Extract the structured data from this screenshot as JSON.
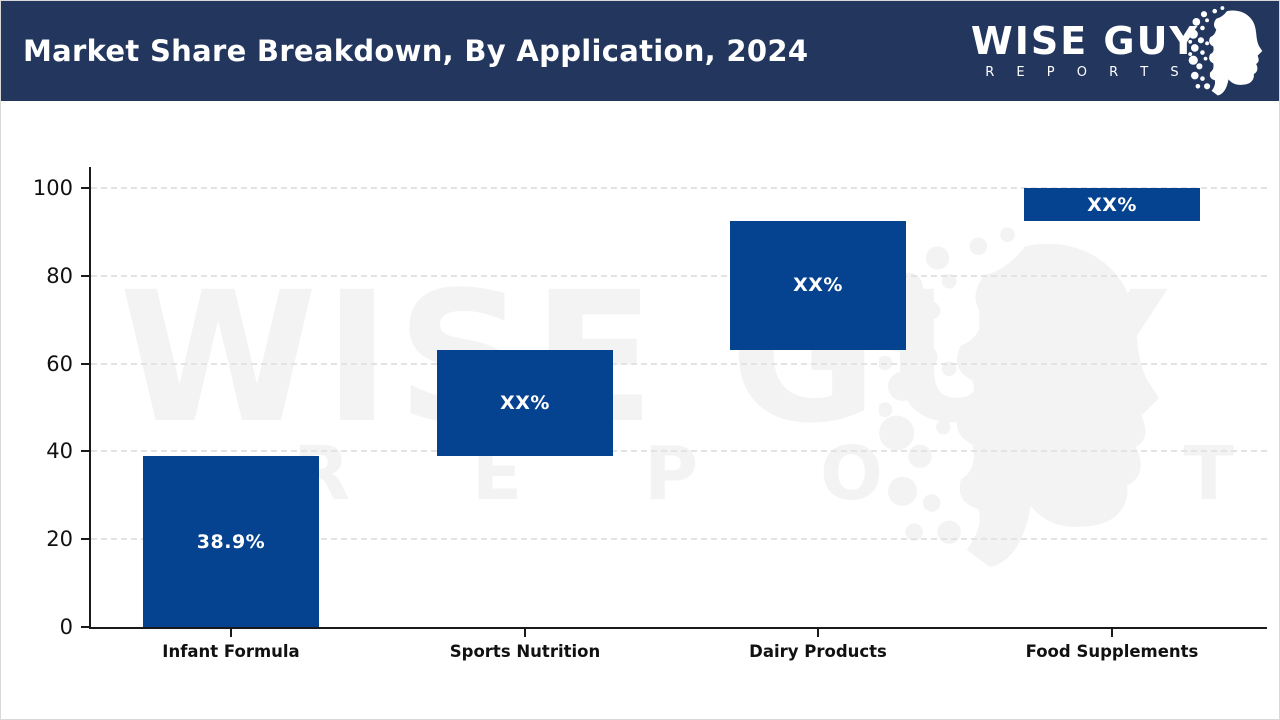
{
  "header": {
    "title": "Market Share Breakdown, By Application, 2024",
    "bg_color": "#22365E",
    "logo": {
      "line1": "WISE GUY",
      "line2": "R E P O R T S",
      "head_icon": "dotted-face-profile",
      "color": "#ffffff"
    }
  },
  "watermark": {
    "line1": "WISE GUY",
    "line2": "R E P O R T S",
    "head_icon": "dotted-face-profile",
    "color": "#f3f3f3"
  },
  "chart_data": {
    "type": "bar",
    "subtype": "waterfall",
    "title": "Market Share Breakdown, By Application, 2024",
    "xlabel": "",
    "ylabel": "",
    "categories": [
      "Infant Formula",
      "Sports Nutrition",
      "Dairy Products",
      "Food Supplements"
    ],
    "segments": [
      {
        "category": "Infant Formula",
        "start": 0,
        "end": 38.9,
        "label": "38.9%"
      },
      {
        "category": "Sports Nutrition",
        "start": 38.9,
        "end": 63.2,
        "label": "XX%"
      },
      {
        "category": "Dairy Products",
        "start": 63.2,
        "end": 92.4,
        "label": "XX%"
      },
      {
        "category": "Food Supplements",
        "start": 92.4,
        "end": 100,
        "label": "XX%"
      }
    ],
    "yticks": [
      0,
      20,
      40,
      60,
      80,
      100
    ],
    "ylim": [
      0,
      104
    ],
    "grid": "horizontal-dashed",
    "legend": "none",
    "bar_color": "#05428F",
    "bar_label_color": "#ffffff",
    "axis_color": "#1a1a1a",
    "grid_color": "#e3e3e3",
    "tick_label_color": "#111111"
  }
}
